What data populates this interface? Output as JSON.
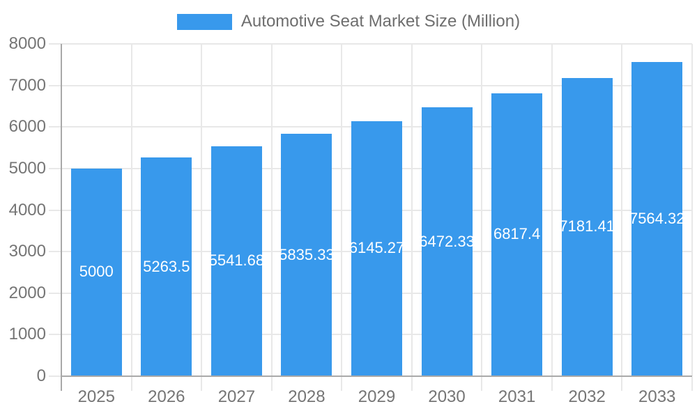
{
  "chart_data": {
    "type": "bar",
    "title": "Automotive Seat Market Size (Million)",
    "series_name": "Automotive Seat Market Size (Million)",
    "legend_position": "top",
    "categories": [
      "2025",
      "2026",
      "2027",
      "2028",
      "2029",
      "2030",
      "2031",
      "2032",
      "2033"
    ],
    "values": [
      5000,
      5263.5,
      5541.68,
      5835.33,
      6145.27,
      6472.33,
      6817.4,
      7181.41,
      7564.32
    ],
    "bar_labels": [
      "5000",
      "5263.5",
      "5541.68",
      "5835.33",
      "6145.27",
      "6472.33",
      "6817.4",
      "7181.41",
      "7564.32"
    ],
    "ylim": [
      0,
      8000
    ],
    "y_tick_step": 1000,
    "y_ticks": [
      "0",
      "1000",
      "2000",
      "3000",
      "4000",
      "5000",
      "6000",
      "7000",
      "8000"
    ],
    "grid": true,
    "colors": {
      "bar": "#3899EC",
      "bar_label": "#FFFFFF",
      "grid": "#E8E8E8",
      "axis": "#A9A9A9",
      "tick_text": "#757575",
      "title_text": "#6E6E6E"
    }
  }
}
